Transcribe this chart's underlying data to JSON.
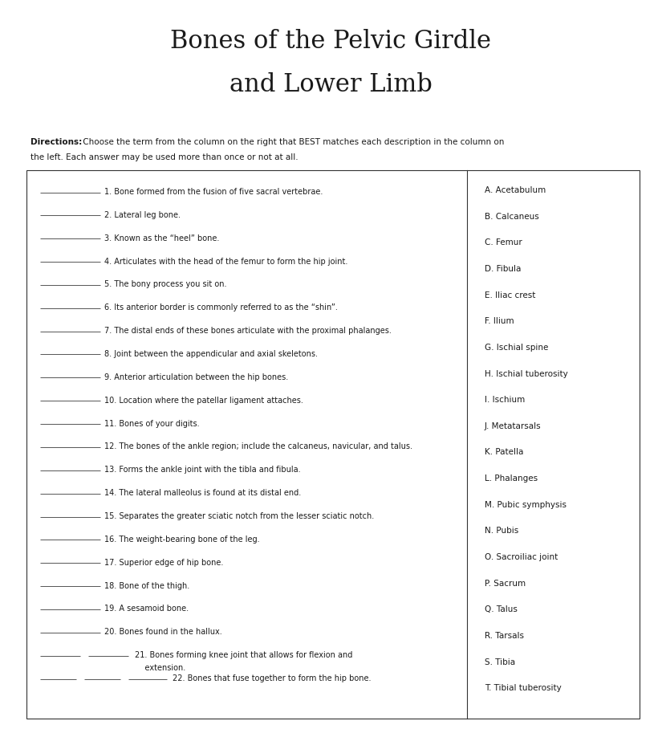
{
  "title_line1": "Bones of the Pelvic Girdle",
  "title_line2": "and Lower Limb",
  "directions_bold": "Directions:",
  "directions_rest": " Choose the term from the column on the right that BEST matches each description in the column on",
  "directions_line2": "the left. Each answer may be used more than once or not at all.",
  "questions_1to20": [
    "1. Bone formed from the fusion of five sacral vertebrae.",
    "2. Lateral leg bone.",
    "3. Known as the “heel” bone.",
    "4. Articulates with the head of the femur to form the hip joint.",
    "5. The bony process you sit on.",
    "6. Its anterior border is commonly referred to as the “shin”.",
    "7. The distal ends of these bones articulate with the proximal phalanges.",
    "8. Joint between the appendicular and axial skeletons.",
    "9. Anterior articulation between the hip bones.",
    "10. Location where the patellar ligament attaches.",
    "11. Bones of your digits.",
    "12. The bones of the ankle region; include the calcaneus, navicular, and talus.",
    "13. Forms the ankle joint with the tibla and fibula.",
    "14. The lateral malleolus is found at its distal end.",
    "15. Separates the greater sciatic notch from the lesser sciatic notch.",
    "16. The weight-bearing bone of the leg.",
    "17. Superior edge of hip bone.",
    "18. Bone of the thigh.",
    "19. A sesamoid bone.",
    "20. Bones found in the hallux."
  ],
  "q21_text": "21. Bones forming knee joint that allows for flexion and",
  "q21_text2": "    extension.",
  "q22_text": "22. Bones that fuse together to form the hip bone.",
  "answers": [
    "A. Acetabulum",
    "B. Calcaneus",
    "C. Femur",
    "D. Fibula",
    "E. Iliac crest",
    "F. Ilium",
    "G. Ischial spine",
    "H. Ischial tuberosity",
    "I. Ischium",
    "J. Metatarsals",
    "K. Patella",
    "L. Phalanges",
    "M. Pubic symphysis",
    "N. Pubis",
    "O. Sacroiliac joint",
    "P. Sacrum",
    "Q. Talus",
    "R. Tarsals",
    "S. Tibia",
    "T. Tibial tuberosity"
  ],
  "bg_color": "#ffffff",
  "box_color": "#333333",
  "text_color": "#1a1a1a",
  "line_color": "#555555",
  "title_fontsize": 22,
  "directions_fontsize": 7.5,
  "question_fontsize": 7.0,
  "answer_fontsize": 7.5,
  "fig_width": 8.25,
  "fig_height": 9.08
}
